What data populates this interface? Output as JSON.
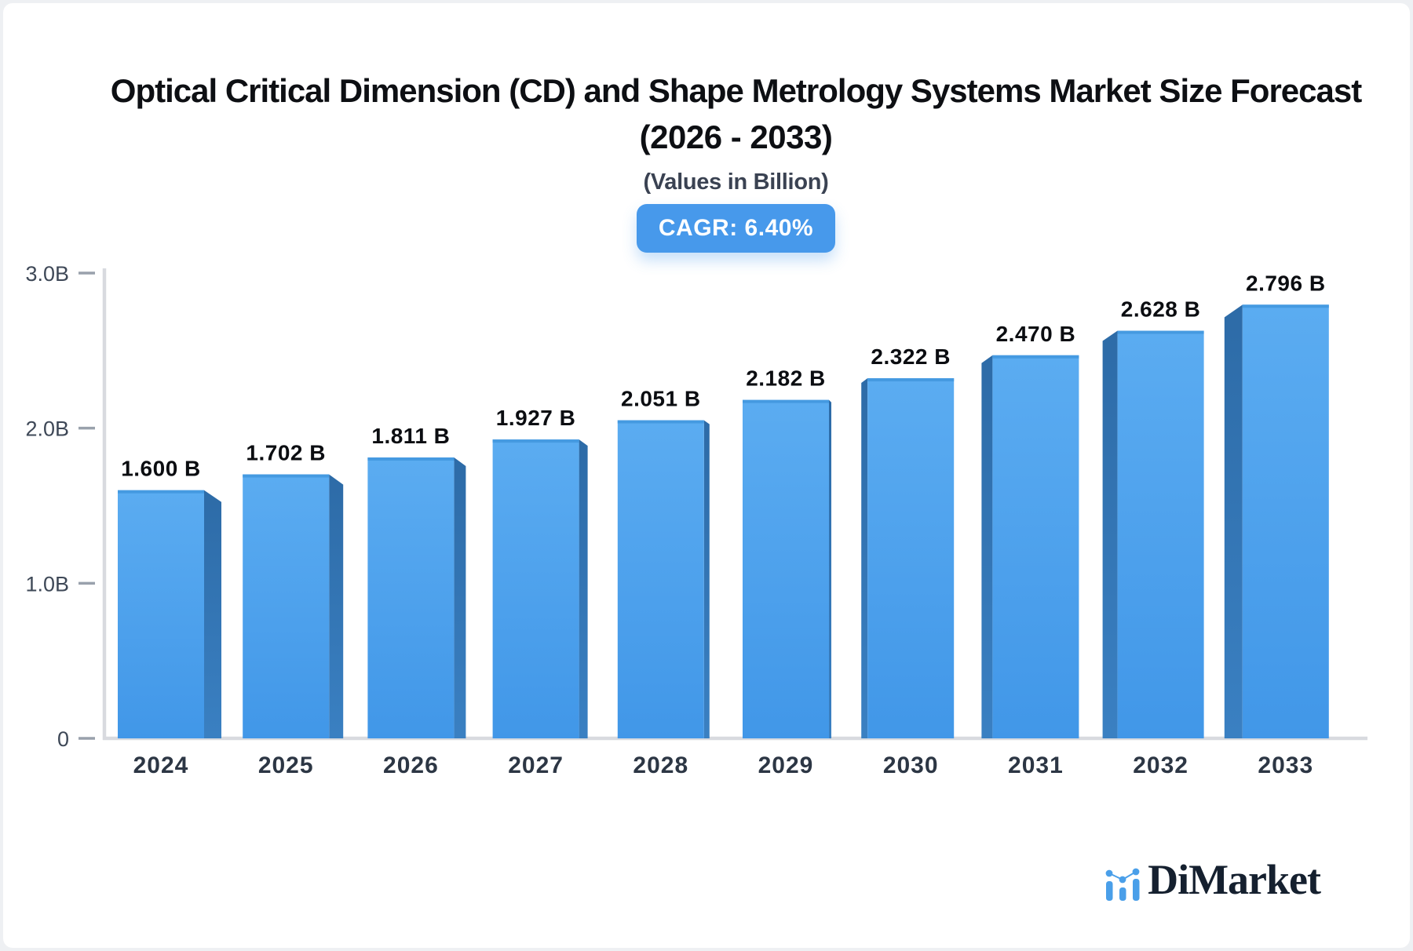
{
  "header": {
    "title_line1": "Optical Critical Dimension (CD) and Shape Metrology Systems Market Size Forecast",
    "title_line2": "(2026 - 2033)",
    "subtitle": "(Values in Billion)",
    "cagr_label": "CAGR: 6.40%"
  },
  "chart_data": {
    "type": "bar",
    "title": "Optical Critical Dimension (CD) and Shape Metrology Systems Market Size Forecast (2026 - 2033)",
    "subtitle": "(Values in Billion)",
    "cagr_pct": 6.4,
    "categories": [
      "2024",
      "2025",
      "2026",
      "2027",
      "2028",
      "2029",
      "2030",
      "2031",
      "2032",
      "2033"
    ],
    "values": [
      1.6,
      1.702,
      1.811,
      1.927,
      2.051,
      2.182,
      2.322,
      2.47,
      2.628,
      2.796
    ],
    "value_labels": [
      "1.600 B",
      "1.702 B",
      "1.811 B",
      "1.927 B",
      "2.051 B",
      "2.182 B",
      "2.322 B",
      "2.470 B",
      "2.628 B",
      "2.796 B"
    ],
    "xlabel": "",
    "ylabel": "",
    "ylim": [
      0,
      3
    ],
    "yticks": [
      {
        "value": 3,
        "label": "3.0B"
      },
      {
        "value": 2,
        "label": "2.0B"
      },
      {
        "value": 1,
        "label": "1.0B"
      },
      {
        "value": 0,
        "label": "0"
      }
    ],
    "grid": false,
    "legend": false,
    "bar_style": "3d-perspective"
  },
  "branding": {
    "logo_text": "DiMarket",
    "logo_icon": "bar-line-chart-icon"
  },
  "colors": {
    "page_bg": "#eef0f3",
    "card_bg": "#ffffff",
    "bar_front_top": "#5bacf1",
    "bar_front_bottom": "#4197e8",
    "bar_top_edge": "#459ae1",
    "bar_side_top": "#2d6ba7",
    "bar_side_bottom": "#3a80c2",
    "axis_line": "#d8dadf",
    "tick_mark": "#99a1ac",
    "tick_label": "#3e4857",
    "year_label": "#2c3644",
    "value_label": "#0b0d11",
    "badge_bg": "#4799eb",
    "badge_text": "#ffffff",
    "logo_blue": "#4a9fe9",
    "logo_navy": "#15202f"
  }
}
